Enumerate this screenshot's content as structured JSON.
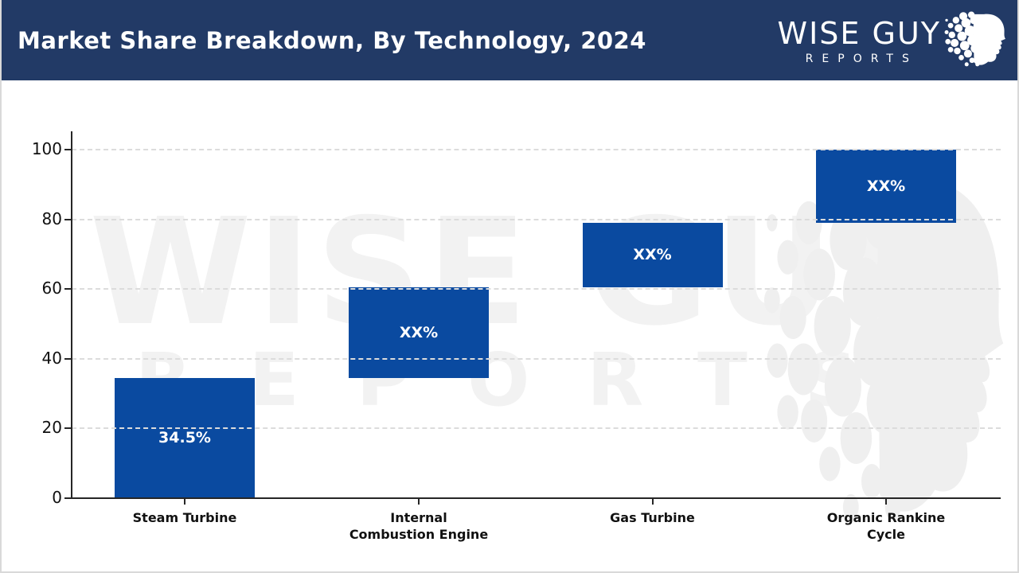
{
  "header": {
    "title": "Market Share Breakdown, By Technology, 2024",
    "logo": {
      "wordmark": "WISE GUY",
      "subtext": "REPORTS"
    }
  },
  "watermark": {
    "wordmark": "WISE GUY",
    "subtext": "REPORTS"
  },
  "colors": {
    "header_bg": "#223a66",
    "bar": "#0a4aa0",
    "bar_label": "#ffffff",
    "grid": "#dcdcdc",
    "axis": "#262626",
    "tick_text": "#111111",
    "watermark": "#f2f2f2"
  },
  "chart_data": {
    "type": "bar",
    "subtype": "waterfall",
    "title": "Market Share Breakdown, By Technology, 2024",
    "categories": [
      "Steam Turbine",
      "Internal Combustion Engine",
      "Gas Turbine",
      "Organic Rankine Cycle"
    ],
    "category_lines": [
      [
        "Steam Turbine"
      ],
      [
        "Internal",
        "Combustion Engine"
      ],
      [
        "Gas Turbine"
      ],
      [
        "Organic Rankine",
        "Cycle"
      ]
    ],
    "segments": [
      {
        "category": "Steam Turbine",
        "start": 0,
        "end": 34.5,
        "value": 34.5,
        "label": "34.5%"
      },
      {
        "category": "Internal Combustion Engine",
        "start": 34.5,
        "end": 60.5,
        "value": 26,
        "label": "XX%"
      },
      {
        "category": "Gas Turbine",
        "start": 60.5,
        "end": 79,
        "value": 18.5,
        "label": "XX%"
      },
      {
        "category": "Organic Rankine Cycle",
        "start": 79,
        "end": 100,
        "value": 21,
        "label": "XX%"
      }
    ],
    "ylabel": "",
    "xlabel": "",
    "ylim": [
      0,
      100
    ],
    "yticks": [
      "0",
      "20",
      "40",
      "60",
      "80",
      "100"
    ],
    "grid": "horizontal-dashed",
    "legend": "none",
    "bar_color": "#0a4aa0",
    "bar_label_color": "#ffffff"
  }
}
